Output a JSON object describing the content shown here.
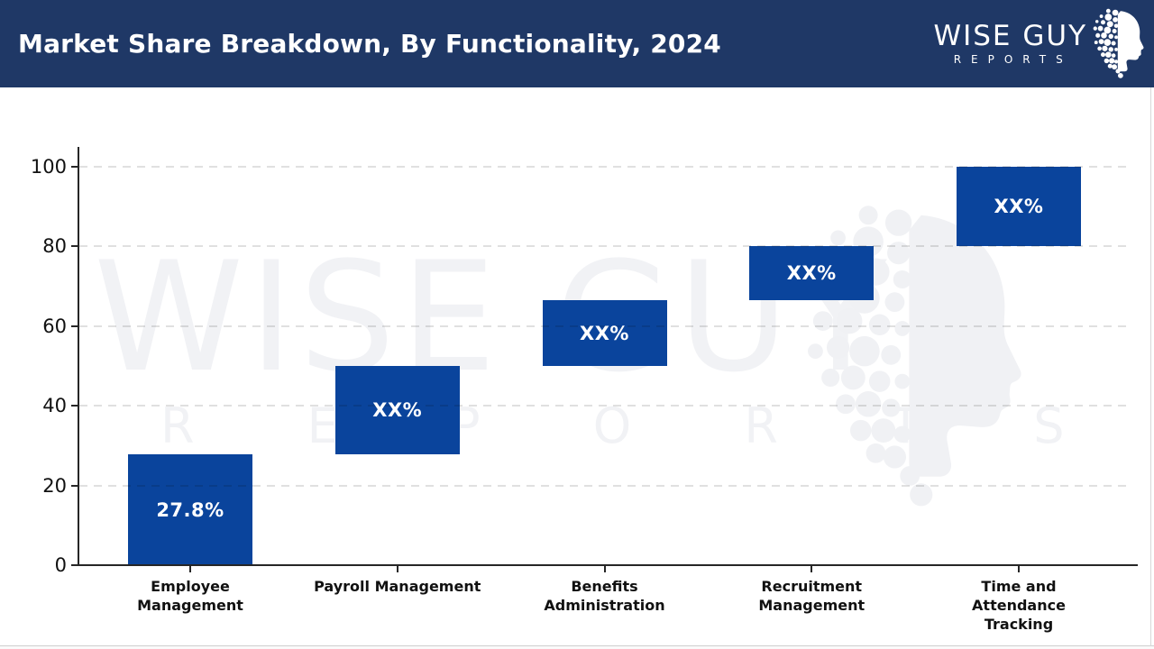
{
  "header": {
    "title": "Market Share Breakdown, By Functionality, 2024",
    "logo": {
      "line1": "WISE GUY",
      "line2": "REPORTS"
    }
  },
  "watermark": {
    "line1": "WISE GUY",
    "line2": "R E P O R T S"
  },
  "colors": {
    "header_bg": "#1f3866",
    "bar": "#0a449c",
    "axis": "#262626",
    "grid": "rgba(0,0,0,0.12)",
    "title_text": "#ffffff",
    "bar_label_text": "#ffffff",
    "watermark_text": "#f1f2f5"
  },
  "chart_data": {
    "type": "bar",
    "subtype": "floating-waterfall",
    "title": "Market Share Breakdown, By Functionality, 2024",
    "xlabel": "",
    "ylabel": "",
    "ylim": [
      0,
      100
    ],
    "yticks": [
      0,
      20,
      40,
      60,
      80,
      100
    ],
    "grid": "horizontal dashed",
    "legend": "none",
    "bar_color": "#0a449c",
    "categories": [
      "Employee Management",
      "Payroll Management",
      "Benefits Administration",
      "Recruitment Management",
      "Time and Attendance Tracking"
    ],
    "category_lines": [
      [
        "Employee",
        "Management"
      ],
      [
        "Payroll Management"
      ],
      [
        "Benefits",
        "Administration"
      ],
      [
        "Recruitment",
        "Management"
      ],
      [
        "Time and",
        "Attendance",
        "Tracking"
      ]
    ],
    "segments": [
      {
        "label": "27.8%",
        "from": 0,
        "to": 27.8
      },
      {
        "label": "XX%",
        "from": 27.8,
        "to": 50
      },
      {
        "label": "XX%",
        "from": 50,
        "to": 66.5
      },
      {
        "label": "XX%",
        "from": 66.5,
        "to": 80
      },
      {
        "label": "XX%",
        "from": 80,
        "to": 100
      }
    ]
  }
}
